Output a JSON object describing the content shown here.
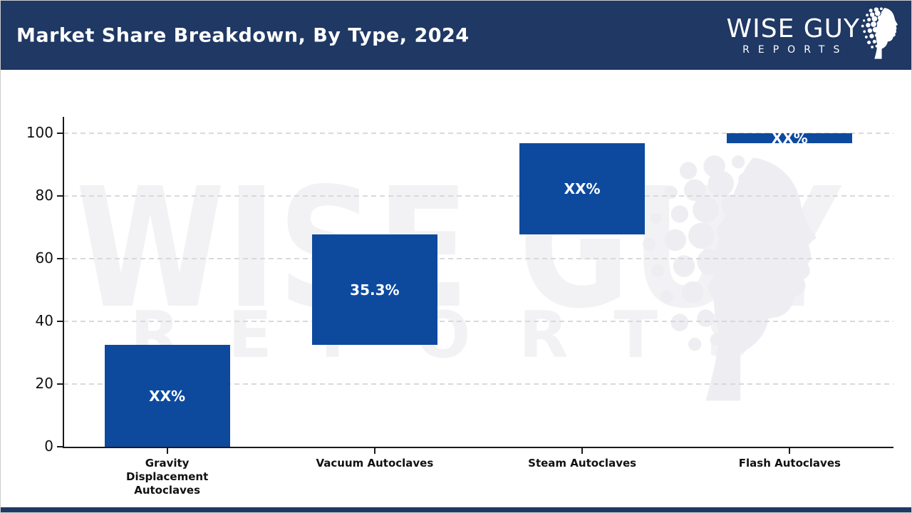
{
  "header": {
    "title": "Market Share Breakdown, By Type, 2024",
    "logo": {
      "line1": "WISE GUY",
      "line2": "REPORTS"
    }
  },
  "watermark": {
    "line1": "WISE GUY",
    "line2": "REPORTS"
  },
  "footer": {},
  "chart_data": {
    "type": "bar",
    "subtype": "waterfall-breakdown",
    "title": "Market Share Breakdown, By Type, 2024",
    "categories": [
      "Gravity Displacement Autoclaves",
      "Vacuum Autoclaves",
      "Steam Autoclaves",
      "Flash Autoclaves"
    ],
    "category_label_lines": [
      [
        "Gravity",
        "Displacement",
        "Autoclaves"
      ],
      [
        "Vacuum Autoclaves"
      ],
      [
        "Steam Autoclaves"
      ],
      [
        "Flash Autoclaves"
      ]
    ],
    "segments": [
      {
        "category": "Gravity Displacement Autoclaves",
        "start": 0,
        "end": 32.4,
        "size": 32.4,
        "label": "XX%"
      },
      {
        "category": "Vacuum Autoclaves",
        "start": 32.4,
        "end": 67.7,
        "size": 35.3,
        "label": "35.3%"
      },
      {
        "category": "Steam Autoclaves",
        "start": 67.7,
        "end": 96.9,
        "size": 29.2,
        "label": "XX%"
      },
      {
        "category": "Flash Autoclaves",
        "start": 96.9,
        "end": 100,
        "size": 3.1,
        "label": "XX%"
      }
    ],
    "ylim": [
      0,
      100
    ],
    "yticks": [
      0,
      20,
      40,
      60,
      80,
      100
    ],
    "xlabel": "",
    "ylabel": "",
    "grid": "horizontal-dashed",
    "legend": "none",
    "bar_color": "#0d4a9e",
    "bar_label_color": "#ffffff",
    "header_bg_color": "#1f3864",
    "grid_color": "#d9d9d9",
    "axis_color": "#1a1a1a",
    "watermark_color": "#f2f2f4"
  }
}
